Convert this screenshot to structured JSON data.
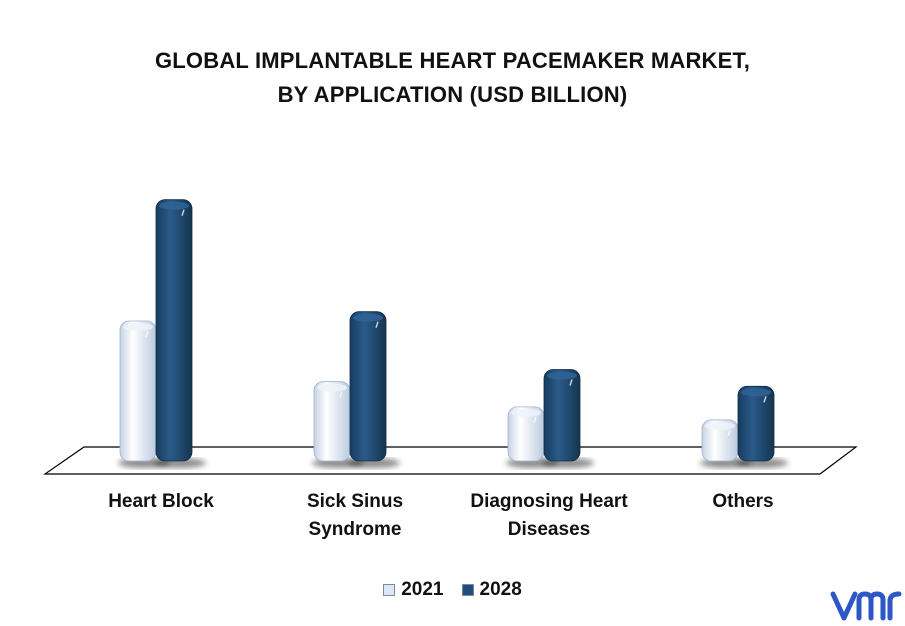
{
  "chart_data": {
    "type": "bar",
    "title_lines": [
      "GLOBAL IMPLANTABLE HEART PACEMAKER MARKET,",
      "BY APPLICATION (USD BILLION)"
    ],
    "categories": [
      [
        "Heart Block"
      ],
      [
        "Sick Sinus",
        "Syndrome"
      ],
      [
        "Diagnosing Heart",
        "Diseases"
      ],
      [
        "Others"
      ]
    ],
    "series": [
      {
        "name": "2021",
        "color": "#dde7f3",
        "values": [
          1.5,
          0.85,
          0.58,
          0.44
        ]
      },
      {
        "name": "2028",
        "color": "#1f4e79",
        "values": [
          2.8,
          1.6,
          0.98,
          0.8
        ]
      }
    ],
    "ylim": [
      0,
      3.0
    ],
    "grid": false,
    "legend_position": "bottom-center",
    "style": "3d-cylinder"
  },
  "brand": {
    "logo_icon": "vmr-logo-icon",
    "logo_color": "#2d56c6"
  }
}
